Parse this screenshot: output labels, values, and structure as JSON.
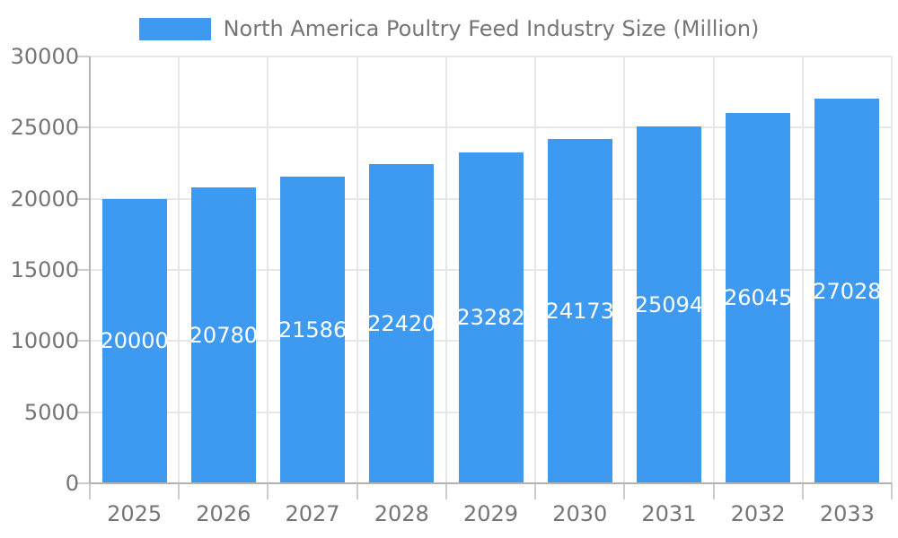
{
  "legend": {
    "label": "North America Poultry Feed Industry Size (Million)"
  },
  "colors": {
    "bar": "#3e9af0",
    "grid": "#e7e7e7",
    "axis": "#b3b3b3",
    "tick": "#cccccc",
    "text": "#757575",
    "bar_label": "#ffffff"
  },
  "chart_data": {
    "type": "bar",
    "title": "North America Poultry Feed Industry Size (Million)",
    "categories": [
      "2025",
      "2026",
      "2027",
      "2028",
      "2029",
      "2030",
      "2031",
      "2032",
      "2033"
    ],
    "values": [
      20000,
      20780,
      21586,
      22420,
      23282,
      24173,
      25094,
      26045,
      27028
    ],
    "xlabel": "",
    "ylabel": "",
    "ylim": [
      0,
      30000
    ],
    "yticks": [
      0,
      5000,
      10000,
      15000,
      20000,
      25000,
      30000
    ],
    "grid": true,
    "legend_position": "top",
    "bar_labels_inside": true
  }
}
